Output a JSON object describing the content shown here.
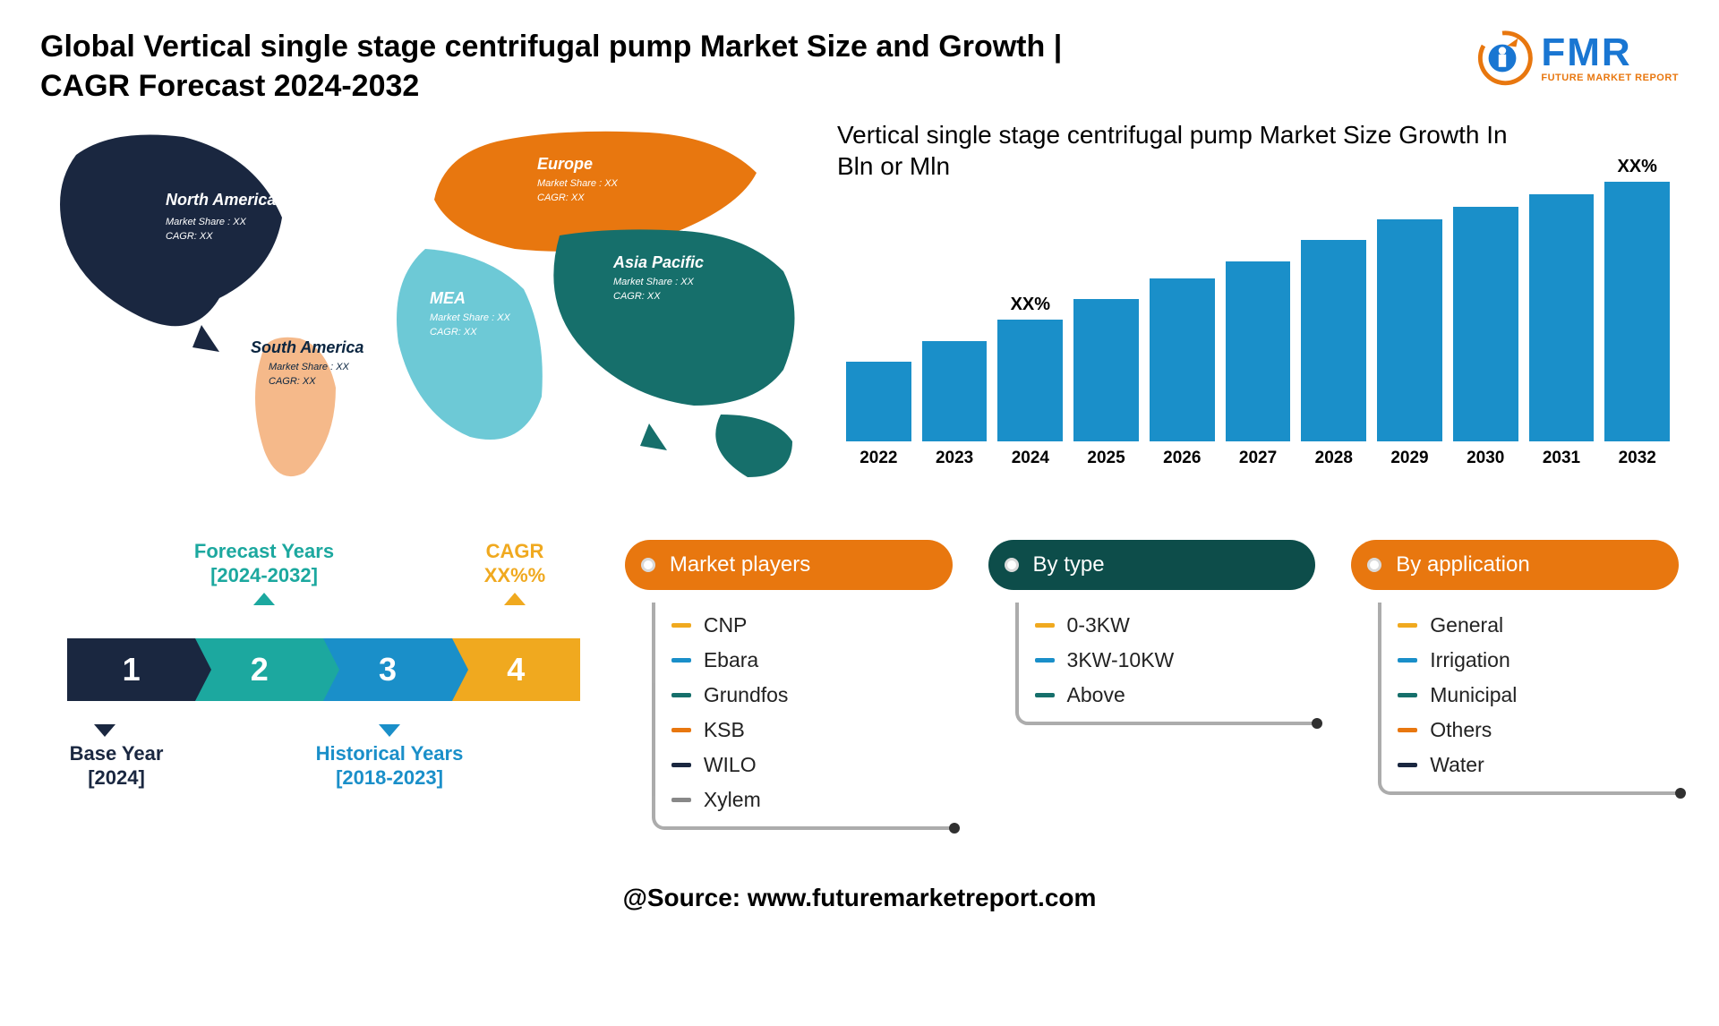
{
  "title": "Global Vertical single stage centrifugal pump  Market Size and Growth | CAGR Forecast 2024-2032",
  "logo": {
    "fmr": "FMR",
    "sub": "FUTURE MARKET REPORT"
  },
  "colors": {
    "navy": "#1a2740",
    "teal_dark": "#0d4d4a",
    "teal": "#1ca89f",
    "teal_mid": "#166f6b",
    "blue": "#1a8fc9",
    "orange": "#e8770f",
    "amber": "#f0a91f",
    "peach": "#f5b98a",
    "cyan_light": "#6dc9d6"
  },
  "map": {
    "regions": [
      {
        "name": "North America",
        "share": "Market Share : XX",
        "cagr": "CAGR: XX",
        "color": "#1a2740"
      },
      {
        "name": "South America",
        "share": "Market Share : XX",
        "cagr": "CAGR: XX",
        "color": "#f5b98a"
      },
      {
        "name": "Europe",
        "share": "Market Share : XX",
        "cagr": "CAGR: XX",
        "color": "#e8770f"
      },
      {
        "name": "MEA",
        "share": "Market Share : XX",
        "cagr": "CAGR: XX",
        "color": "#6dc9d6"
      },
      {
        "name": "Asia Pacific",
        "share": "Market Share : XX",
        "cagr": "CAGR: XX",
        "color": "#166f6b"
      }
    ]
  },
  "chart": {
    "title": "Vertical single stage centrifugal pump Market Size Growth In\nBln or Mln",
    "type": "bar",
    "bar_color": "#1a8fc9",
    "categories": [
      "2022",
      "2023",
      "2024",
      "2025",
      "2026",
      "2027",
      "2028",
      "2029",
      "2030",
      "2031",
      "2032"
    ],
    "values": [
      95,
      120,
      145,
      170,
      195,
      215,
      240,
      265,
      280,
      295,
      310
    ],
    "ylim": [
      0,
      320
    ],
    "annotations": [
      {
        "index": 2,
        "text": "XX%"
      },
      {
        "index": 10,
        "text": "XX%"
      }
    ]
  },
  "timeline": {
    "forecast": {
      "label": "Forecast Years",
      "range": "[2024-2032]"
    },
    "cagr": {
      "label": "CAGR",
      "value": "XX%%"
    },
    "base": {
      "label": "Base Year",
      "range": "[2024]"
    },
    "historical": {
      "label": "Historical Years",
      "range": "[2018-2023]"
    },
    "segments": [
      "1",
      "2",
      "3",
      "4"
    ]
  },
  "pills": {
    "market_players": {
      "title": "Market players",
      "items": [
        {
          "label": "CNP",
          "color": "#f0a91f"
        },
        {
          "label": "Ebara",
          "color": "#1a8fc9"
        },
        {
          "label": "Grundfos",
          "color": "#166f6b"
        },
        {
          "label": "KSB",
          "color": "#e8770f"
        },
        {
          "label": "WILO",
          "color": "#1a2740"
        },
        {
          "label": "Xylem",
          "color": "#888888"
        }
      ]
    },
    "by_type": {
      "title": "By type",
      "items": [
        {
          "label": "0-3KW",
          "color": "#f0a91f"
        },
        {
          "label": "3KW-10KW",
          "color": "#1a8fc9"
        },
        {
          "label": "Above",
          "color": "#166f6b"
        }
      ]
    },
    "by_application": {
      "title": "By application",
      "items": [
        {
          "label": "General",
          "color": "#f0a91f"
        },
        {
          "label": "Irrigation",
          "color": "#1a8fc9"
        },
        {
          "label": "Municipal",
          "color": "#166f6b"
        },
        {
          "label": "Others",
          "color": "#e8770f"
        },
        {
          "label": "Water",
          "color": "#1a2740"
        }
      ]
    }
  },
  "source": "@Source: www.futuremarketreport.com"
}
